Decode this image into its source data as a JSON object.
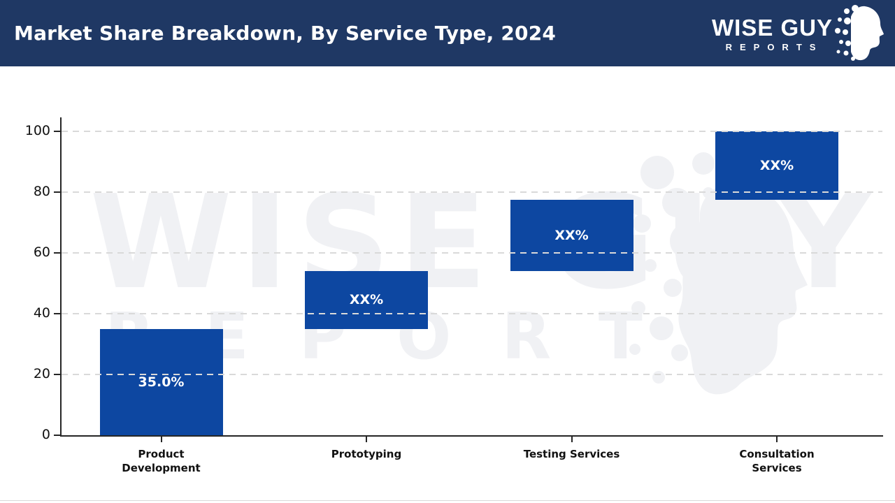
{
  "header": {
    "title": "Market Share Breakdown, By Service Type, 2024",
    "bg_color": "#1F3864",
    "brand": {
      "line1": "WISE GUY",
      "line2": "REPORTS"
    }
  },
  "watermark": {
    "line1": "WISE GUY",
    "line2": "REPORTS"
  },
  "chart_data": {
    "type": "bar",
    "variant": "waterfall-floating-bars",
    "title": "Market Share Breakdown, By Service Type, 2024",
    "categories": [
      "Product Development",
      "Prototyping",
      "Testing Services",
      "Consultation Services"
    ],
    "categories_display": [
      [
        "Product",
        "Development"
      ],
      [
        "Prototyping"
      ],
      [
        "Testing Services"
      ],
      [
        "Consultation",
        "Services"
      ]
    ],
    "bars": [
      {
        "category": "Product Development",
        "start": 0,
        "end": 35,
        "label": "35.0%"
      },
      {
        "category": "Prototyping",
        "start": 35,
        "end": 54,
        "label": "XX%"
      },
      {
        "category": "Testing Services",
        "start": 54,
        "end": 77.5,
        "label": "XX%"
      },
      {
        "category": "Consultation Services",
        "start": 77.5,
        "end": 100,
        "label": "XX%"
      }
    ],
    "xlabel": "",
    "ylabel": "",
    "yticks": [
      0,
      20,
      40,
      60,
      80,
      100
    ],
    "ylim": [
      0,
      105
    ],
    "grid": "horizontal dashed, drawn over bars",
    "legend": "none",
    "bar_color": "#0D47A1",
    "bar_label_color": "#FFFFFF",
    "gridline_color": "#d9d9d9",
    "axis_color": "#262626",
    "tick_label_color": "#111111"
  }
}
